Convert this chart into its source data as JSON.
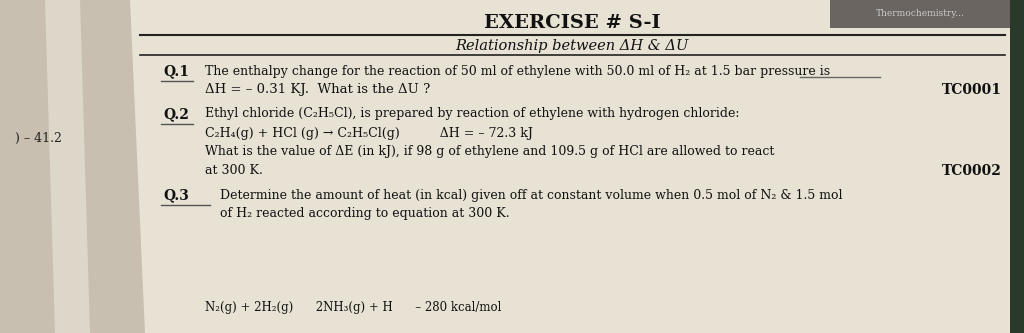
{
  "title": "EXERCISE # S-I",
  "subtitle": "Relationship between ΔH & ΔU",
  "page_color": "#d8cfc0",
  "page_color2": "#e8e2d5",
  "left_curve_color": "#c8bfb0",
  "dark_green_bg": "#2a3a2a",
  "top_dark_box": "#6a6560",
  "top_right_text": "Thermochemistry...",
  "left_margin_text": ") – 41.2",
  "q1_line1": "The enthalpy change for the reaction of 50 ml of ethylene with 50.0 ml of H₂ at 1.5 bar pressure is",
  "q1_line2": "ΔH = – 0.31 KJ.  What is the ΔU ?",
  "q1_code": "TC0001",
  "q2_line1": "Ethyl chloride (C₂H₅Cl), is prepared by reaction of ethylene with hydrogen chloride:",
  "q2_line2": "C₂H₄(g) + HCl (g) → C₂H₅Cl(g)          ΔH = – 72.3 kJ",
  "q2_line3": "What is the value of ΔE (in kJ), if 98 g of ethylene and 109.5 g of HCl are allowed to react",
  "q2_line4": "at 300 K.",
  "q2_code": "TC0002",
  "q3_line1": "Determine the amount of heat (in kcal) given off at constant volume when 0.5 mol of N₂ & 1.5 mol",
  "q3_line2": "of H₂ reacted according to equation at 300 K.",
  "bottom_line": "N₂(g) + 2H₂(g)      2NH₃(g) + H      – 280 kcal/mol"
}
